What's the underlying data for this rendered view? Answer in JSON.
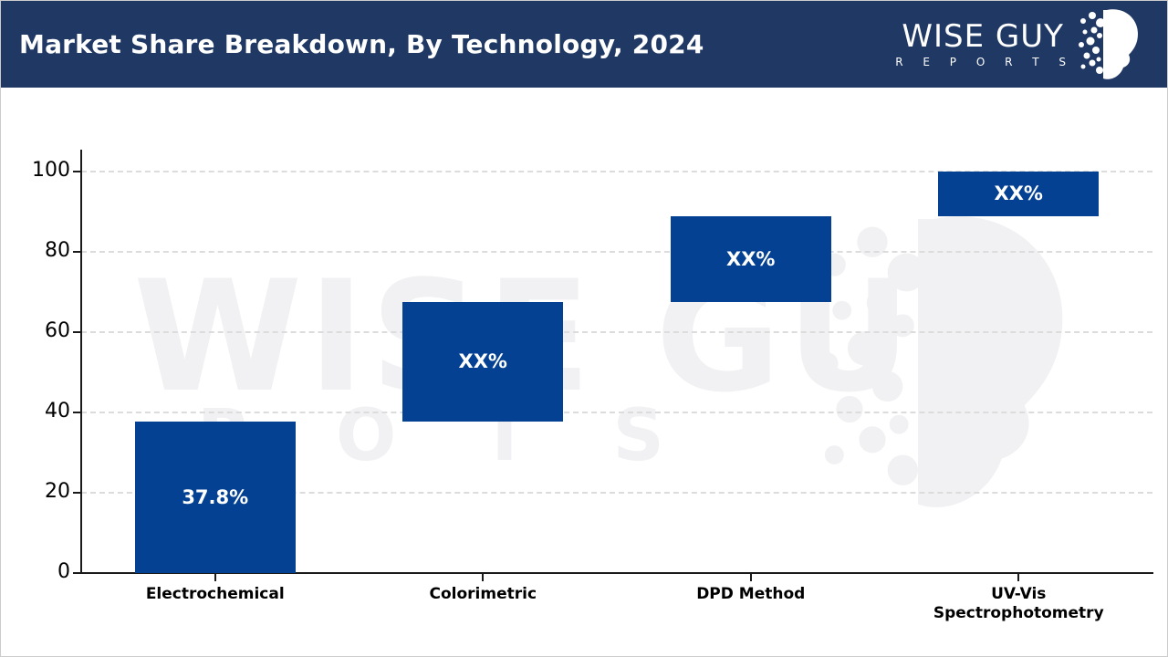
{
  "header": {
    "title": "Market Share Breakdown, By Technology, 2024",
    "background_color": "#203864",
    "logo": {
      "wordmark": "WISE GUY",
      "reports": "REPORTS"
    }
  },
  "watermark": {
    "wordmark": "WISE GU",
    "reports": "ROTS"
  },
  "chart_data": {
    "type": "bar",
    "subtype": "waterfall",
    "title": "Market Share Breakdown, By Technology, 2024",
    "categories": [
      "Electrochemical",
      "Colorimetric",
      "DPD Method",
      "UV-Vis Spectrophotometry"
    ],
    "series": [
      {
        "name": "Market Share",
        "values": [
          37.8,
          29.8,
          21.3,
          11.1
        ]
      }
    ],
    "cumulative_ranges": [
      [
        0,
        37.8
      ],
      [
        37.8,
        67.6
      ],
      [
        67.6,
        88.9
      ],
      [
        88.9,
        100
      ]
    ],
    "bar_labels": [
      "37.8%",
      "XX%",
      "XX%",
      "XX%"
    ],
    "bar_color": "#044193",
    "bar_label_color": "#ffffff",
    "xlabel": "",
    "ylabel": "",
    "ylim": [
      0,
      100
    ],
    "yticks": [
      0,
      20,
      40,
      60,
      80,
      100
    ],
    "grid": "horizontal-dashed",
    "grid_color": "#dcdcdc",
    "legend": "none"
  }
}
